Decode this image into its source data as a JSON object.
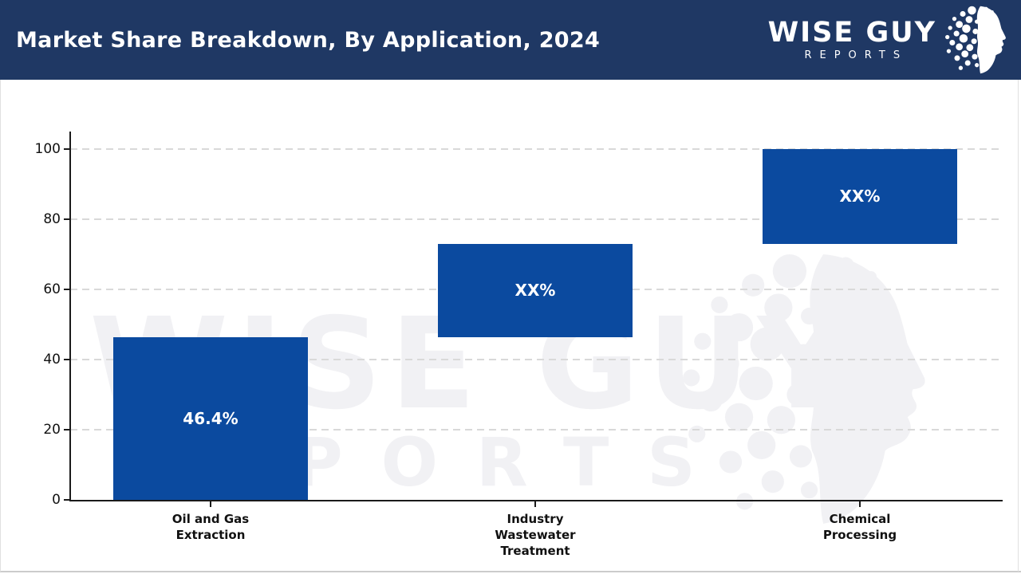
{
  "header": {
    "title": "Market Share Breakdown, By Application, 2024",
    "logo": {
      "line1": "WISE GUY",
      "line2": "REPORTS"
    }
  },
  "watermark": {
    "line1": "WISE GUY",
    "line2": "REPORTS"
  },
  "colors": {
    "header_bg": "#1f3864",
    "bar": "#0b4a9f",
    "bar_label": "#ffffff",
    "gridline": "#d9d9d9",
    "axis": "#1a1a1a",
    "watermark": "#f1f1f4"
  },
  "chart_data": {
    "type": "bar",
    "subtype": "waterfall",
    "title": "Market Share Breakdown, By Application, 2024",
    "categories": [
      "Oil and Gas Extraction",
      "Industry Wastewater Treatment",
      "Chemical Processing"
    ],
    "category_label_lines": [
      [
        "Oil and Gas",
        "Extraction"
      ],
      [
        "Industry",
        "Wastewater",
        "Treatment"
      ],
      [
        "Chemical",
        "Processing"
      ]
    ],
    "bars": [
      {
        "category": "Oil and Gas Extraction",
        "from": 0,
        "to": 46.4,
        "label": "46.4%"
      },
      {
        "category": "Industry Wastewater Treatment",
        "from": 46.4,
        "to": 73,
        "label": "XX%"
      },
      {
        "category": "Chemical Processing",
        "from": 73,
        "to": 100,
        "label": "XX%"
      }
    ],
    "xlabel": "",
    "ylabel": "",
    "ylim": [
      0,
      100
    ],
    "yticks": [
      0,
      20,
      40,
      60,
      80,
      100
    ],
    "grid": "horizontal dashed",
    "legend": "none",
    "bar_color": "#0b4a9f",
    "bar_label_color": "#ffffff"
  }
}
